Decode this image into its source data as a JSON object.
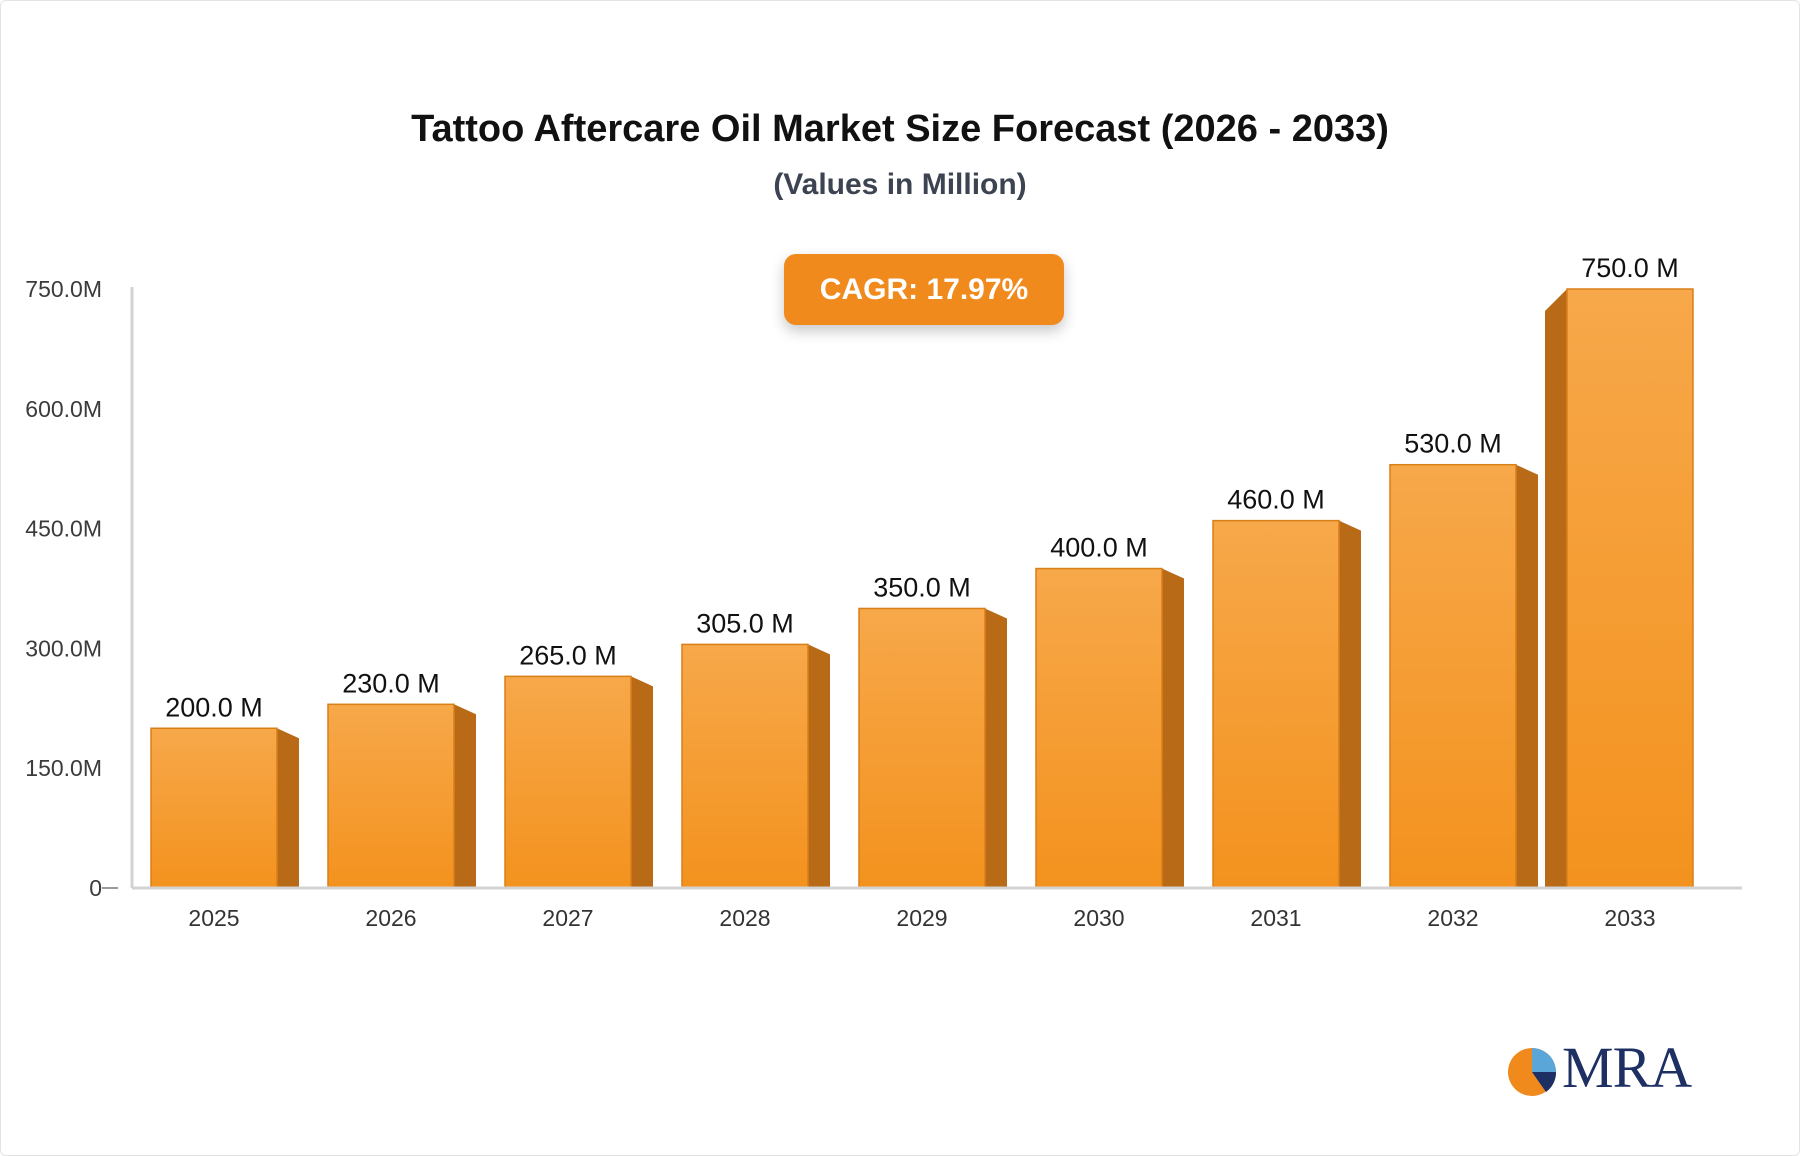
{
  "header": {
    "title": "Tattoo Aftercare Oil Market Size Forecast (2026 - 2033)",
    "subtitle": "(Values in Million)"
  },
  "cagr": {
    "label": "CAGR: 17.97%",
    "color": "#f18a1c"
  },
  "logo": {
    "text": "MRA",
    "text_color": "#1d2f63",
    "accent_color": "#f18a1c",
    "secondary_color": "#5aa6d8"
  },
  "colors": {
    "bar_top": "#f7a84a",
    "bar_bottom": "#f3921e",
    "bar_side": "#b86a17",
    "bar_edge": "#d97f18",
    "axis": "#d3d3d3"
  },
  "chart_data": {
    "type": "bar",
    "categories": [
      "2025",
      "2026",
      "2027",
      "2028",
      "2029",
      "2030",
      "2031",
      "2032",
      "2033"
    ],
    "values": [
      200.0,
      230.0,
      265.0,
      305.0,
      350.0,
      400.0,
      460.0,
      530.0,
      750.0
    ],
    "data_labels": [
      "200.0 M",
      "230.0 M",
      "265.0 M",
      "305.0 M",
      "350.0 M",
      "400.0 M",
      "460.0 M",
      "530.0 M",
      "750.0 M"
    ],
    "yticks": [
      0,
      150,
      300,
      450,
      600,
      750
    ],
    "ytick_labels": [
      "0",
      "150.0M",
      "300.0M",
      "450.0M",
      "600.0M",
      "750.0M"
    ],
    "ylim": [
      0,
      750
    ],
    "title": "Tattoo Aftercare Oil Market Size Forecast (2026 - 2033)",
    "subtitle": "(Values in Million)",
    "grid": false,
    "legend": "none"
  }
}
